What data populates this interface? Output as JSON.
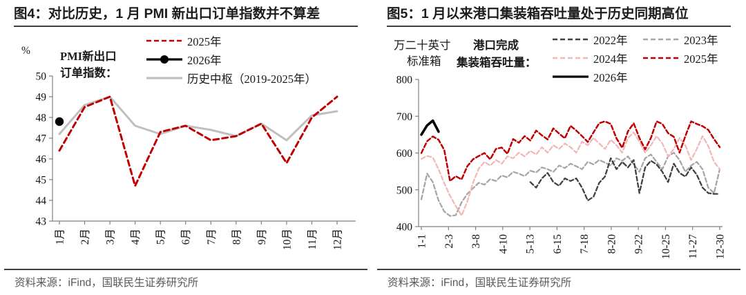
{
  "panels": [
    {
      "title": "图4：对比历史，1 月 PMI 新出口订单指数并不算差",
      "unit": "%",
      "series_label_line1": "PMI新出口",
      "series_label_line2": "订单指数：",
      "source": "资料来源：iFind，国联民生证券研究所"
    },
    {
      "title": "图5：1 月以来港口集装箱吞吐量处于历史同期高位",
      "unit_line1": "万二十英寸",
      "unit_line2": "标准箱",
      "series_label_line1": "港口完成",
      "series_label_line2": "集装箱吞吐量：",
      "source": "资料来源：iFind，国联民生证券研究所"
    }
  ],
  "colors": {
    "red": "#c00000",
    "pink": "#f2b8b8",
    "light_gray": "#a6a6a6",
    "dark_gray": "#404040",
    "hist_gray": "#bfbfbf",
    "black": "#000000",
    "axis": "#7f7f7f",
    "rule": "#3f3f3f",
    "source_text": "#595959"
  },
  "chart_data": [
    {
      "type": "line",
      "title": "图4：对比历史，1 月 PMI 新出口订单指数并不算差",
      "ylabel": "%",
      "xlabel": "",
      "grid": false,
      "legend_position": "top",
      "ylim": [
        43,
        50
      ],
      "yticks": [
        43,
        44,
        45,
        46,
        47,
        48,
        49,
        50
      ],
      "categories": [
        "1月",
        "2月",
        "3月",
        "4月",
        "5月",
        "6月",
        "7月",
        "8月",
        "9月",
        "10月",
        "11月",
        "12月"
      ],
      "series": [
        {
          "name": "2025年",
          "color": "#c00000",
          "style": "dashed",
          "values": [
            46.4,
            48.5,
            49.0,
            44.7,
            47.3,
            47.6,
            46.9,
            47.1,
            47.7,
            45.8,
            48.0,
            49.0
          ]
        },
        {
          "name": "2026年",
          "color": "#000000",
          "style": "solid-marker",
          "values": [
            47.8,
            null,
            null,
            null,
            null,
            null,
            null,
            null,
            null,
            null,
            null,
            null
          ]
        },
        {
          "name": "历史中枢（2019-2025年）",
          "color": "#bfbfbf",
          "style": "solid",
          "values": [
            47.2,
            48.6,
            49.0,
            47.6,
            47.2,
            47.6,
            47.4,
            47.1,
            47.7,
            46.9,
            48.1,
            48.3
          ]
        }
      ]
    },
    {
      "type": "line",
      "title": "图5：1 月以来港口集装箱吞吐量处于历史同期高位",
      "ylabel": "万二十英寸标准箱",
      "xlabel": "",
      "grid": false,
      "legend_position": "top",
      "ylim": [
        400,
        800
      ],
      "yticks": [
        400,
        500,
        600,
        700,
        800
      ],
      "x_tick_labels": [
        "1-1",
        "2-3",
        "3-8",
        "4-10",
        "5-13",
        "6-15",
        "7-18",
        "8-20",
        "9-22",
        "10-25",
        "11-27",
        "12-30"
      ],
      "series": [
        {
          "name": "2022年",
          "color": "#404040",
          "style": "dashed",
          "values": [
            null,
            null,
            null,
            null,
            null,
            null,
            null,
            null,
            null,
            null,
            null,
            null,
            null,
            null,
            null,
            null,
            null,
            null,
            null,
            521,
            506,
            531,
            546,
            521,
            511,
            531,
            524,
            531,
            506,
            471,
            481,
            519,
            536,
            586,
            556,
            576,
            561,
            581,
            491,
            561,
            579,
            569,
            549,
            521,
            571,
            546,
            536,
            561,
            541,
            506,
            491,
            489,
            489
          ]
        },
        {
          "name": "2023年",
          "color": "#a6a6a6",
          "style": "dashed",
          "values": [
            474,
            544,
            521,
            471,
            441,
            429,
            431,
            466,
            489,
            504,
            519,
            514,
            529,
            524,
            539,
            534,
            549,
            544,
            537,
            552,
            547,
            561,
            556,
            549,
            566,
            559,
            571,
            564,
            556,
            576,
            569,
            581,
            574,
            566,
            586,
            579,
            591,
            569,
            549,
            586,
            596,
            576,
            556,
            591,
            601,
            581,
            549,
            566,
            576,
            556,
            506,
            491,
            556
          ]
        },
        {
          "name": "2024年",
          "color": "#f2b8b8",
          "style": "dashed",
          "values": [
            584,
            592,
            588,
            556,
            518,
            484,
            456,
            430,
            468,
            519,
            558,
            576,
            566,
            581,
            571,
            591,
            586,
            601,
            591,
            606,
            596,
            616,
            601,
            621,
            611,
            626,
            616,
            601,
            631,
            621,
            641,
            626,
            611,
            636,
            621,
            601,
            641,
            656,
            631,
            601,
            621,
            646,
            626,
            591,
            611,
            641,
            621,
            581,
            611,
            646,
            619,
            576,
            556
          ]
        },
        {
          "name": "2025年",
          "color": "#c00000",
          "style": "dashed",
          "values": [
            600,
            632,
            645,
            636,
            608,
            524,
            537,
            528,
            564,
            583,
            592,
            600,
            583,
            611,
            615,
            598,
            638,
            628,
            646,
            634,
            661,
            648,
            637,
            667,
            653,
            640,
            674,
            661,
            646,
            630,
            656,
            681,
            686,
            679,
            640,
            614,
            659,
            681,
            641,
            610,
            641,
            686,
            679,
            654,
            644,
            601,
            646,
            686,
            679,
            673,
            663,
            638,
            616
          ]
        },
        {
          "name": "2026年",
          "color": "#000000",
          "style": "solid",
          "values": [
            650,
            675,
            688,
            658,
            null,
            null,
            null,
            null,
            null,
            null,
            null,
            null,
            null,
            null,
            null,
            null,
            null,
            null,
            null,
            null,
            null,
            null,
            null,
            null,
            null,
            null,
            null,
            null,
            null,
            null,
            null,
            null,
            null,
            null,
            null,
            null,
            null,
            null,
            null,
            null,
            null,
            null,
            null,
            null,
            null,
            null,
            null,
            null,
            null,
            null,
            null,
            null,
            null
          ]
        }
      ]
    }
  ]
}
